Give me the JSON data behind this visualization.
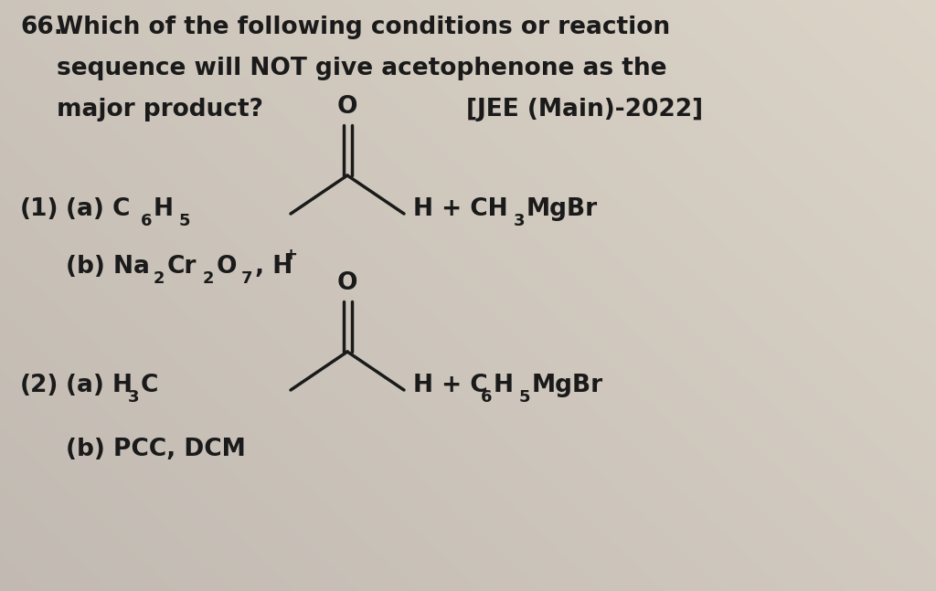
{
  "bg_color_left": "#d4cfc8",
  "bg_color_right": "#e8e4de",
  "bg_color_top": "#c8c3bc",
  "question_num": "66.",
  "q_line1": "Which of the following conditions or reaction",
  "q_line2": "sequence will NOT give acetophenone as the",
  "q_line3": "major product?",
  "jee_tag": "[JEE (Main)-2022]",
  "opt1_num": "(1)",
  "opt1a_text": "(a) C",
  "opt1a_sub1": "6",
  "opt1a_h": "H",
  "opt1a_sub2": "5",
  "opt1a_right": "H + CH",
  "opt1a_sub3": "3",
  "opt1a_end": "MgBr",
  "opt1b_text": "(b) Na",
  "opt1b_sub1": "2",
  "opt1b_cr": "Cr",
  "opt1b_sub2": "2",
  "opt1b_o": "O",
  "opt1b_sub3": "7",
  "opt1b_end": ", H",
  "opt1b_sup": "+",
  "opt2_num": "(2)",
  "opt2a_text": "(a) H",
  "opt2a_sub1": "3",
  "opt2a_c": "C",
  "opt2a_right": "H + C",
  "opt2a_sub2": "6",
  "opt2a_h2": "H",
  "opt2a_sub3": "5",
  "opt2a_end": "MgBr",
  "opt2b_text": "(b) PCC, DCM",
  "struct_linewidth": 2.5,
  "text_color": "#1a1a1a",
  "fontsize_main": 19,
  "fontsize_sub": 13
}
